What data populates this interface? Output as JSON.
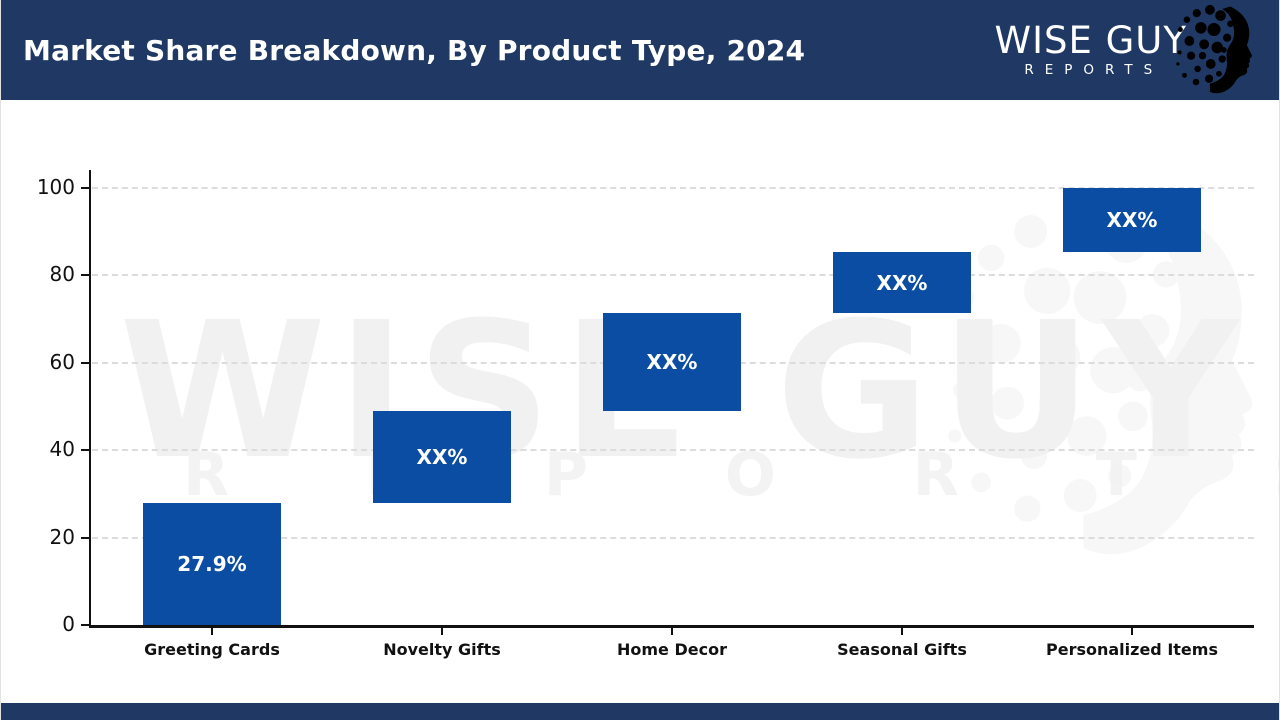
{
  "header": {
    "title": "Market Share Breakdown, By Product Type, 2024",
    "logo": {
      "line1": "WISE GUY",
      "line2": "REPORTS"
    }
  },
  "watermark": {
    "line1": "WISE GUY",
    "line2": "REPORTS"
  },
  "colors": {
    "header_bg": "#1f3864",
    "footer_bg": "#1f3864",
    "bar": "#0b4da2",
    "grid": "#dcdcdc",
    "axis": "#111111",
    "bar_label": "#ffffff"
  },
  "chart_data": {
    "type": "bar",
    "subtype": "waterfall",
    "title": "Market Share Breakdown, By Product Type, 2024",
    "xlabel": "",
    "ylabel": "",
    "ylim": [
      0,
      104
    ],
    "yticks": [
      0,
      20,
      40,
      60,
      80,
      100
    ],
    "grid": "horizontal-dashed",
    "legend": "none",
    "categories": [
      "Greeting Cards",
      "Novelty Gifts",
      "Home Decor",
      "Seasonal Gifts",
      "Personalized Items"
    ],
    "bars": [
      {
        "category": "Greeting Cards",
        "start": 0,
        "end": 27.9,
        "label": "27.9%"
      },
      {
        "category": "Novelty Gifts",
        "start": 27.9,
        "end": 49.0,
        "label": "XX%"
      },
      {
        "category": "Home Decor",
        "start": 49.0,
        "end": 71.3,
        "label": "XX%"
      },
      {
        "category": "Seasonal Gifts",
        "start": 71.3,
        "end": 85.3,
        "label": "XX%"
      },
      {
        "category": "Personalized Items",
        "start": 85.3,
        "end": 100.0,
        "label": "XX%"
      }
    ]
  }
}
